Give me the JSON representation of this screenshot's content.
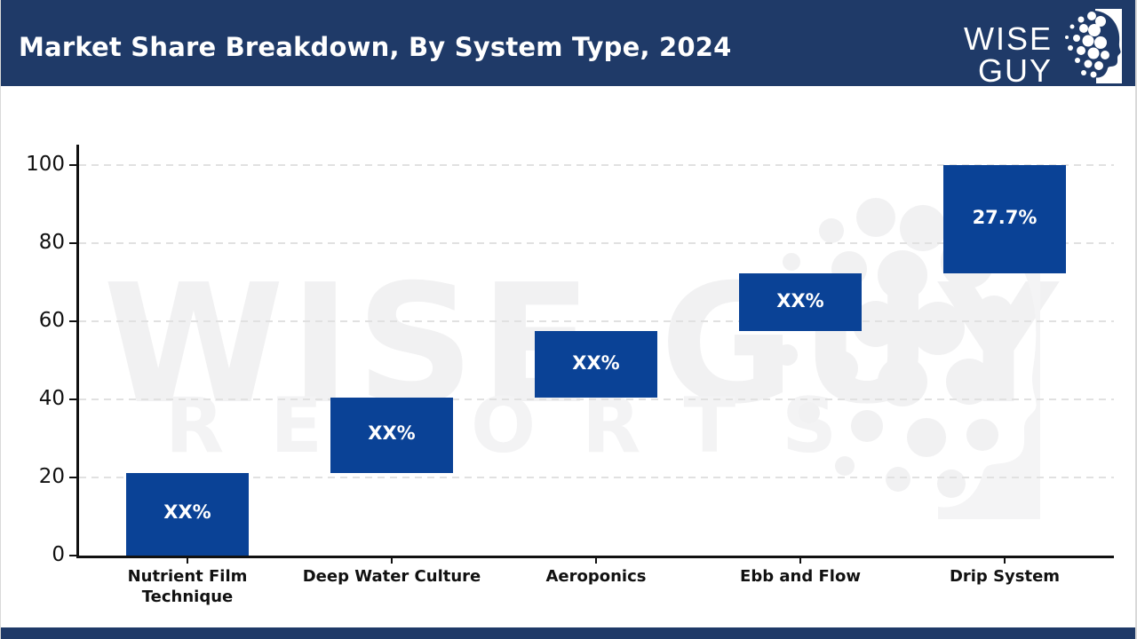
{
  "header": {
    "title": "Market Share Breakdown, By System Type, 2024",
    "logo": {
      "brand": "WISE GUY",
      "sub": "REPORTS"
    }
  },
  "watermark": {
    "brand": "WISE GUY",
    "sub": "REPORTS"
  },
  "chart_data": {
    "type": "bar",
    "subtype": "floating-segments-waterfall-style",
    "title": "Market Share Breakdown, By System Type, 2024",
    "xlabel": "",
    "ylabel": "",
    "ylim": [
      0,
      105
    ],
    "yticks": [
      0,
      20,
      40,
      60,
      80,
      100
    ],
    "grid": "horizontal-dashed",
    "legend": "none",
    "bar_color": "#0a4296",
    "bar_label_color": "#ffffff",
    "categories": [
      "Nutrient Film Technique",
      "Deep Water Culture",
      "Aeroponics",
      "Ebb and Flow",
      "Drip System"
    ],
    "bars": [
      {
        "category": "Nutrient Film Technique",
        "start": 0,
        "end": 21.2,
        "value_label": "XX%"
      },
      {
        "category": "Deep Water Culture",
        "start": 21.2,
        "end": 40.4,
        "value_label": "XX%"
      },
      {
        "category": "Aeroponics",
        "start": 40.4,
        "end": 57.4,
        "value_label": "XX%"
      },
      {
        "category": "Ebb and Flow",
        "start": 57.4,
        "end": 72.3,
        "value_label": "XX%"
      },
      {
        "category": "Drip System",
        "start": 72.3,
        "end": 100,
        "value_label": "27.7%"
      }
    ]
  }
}
